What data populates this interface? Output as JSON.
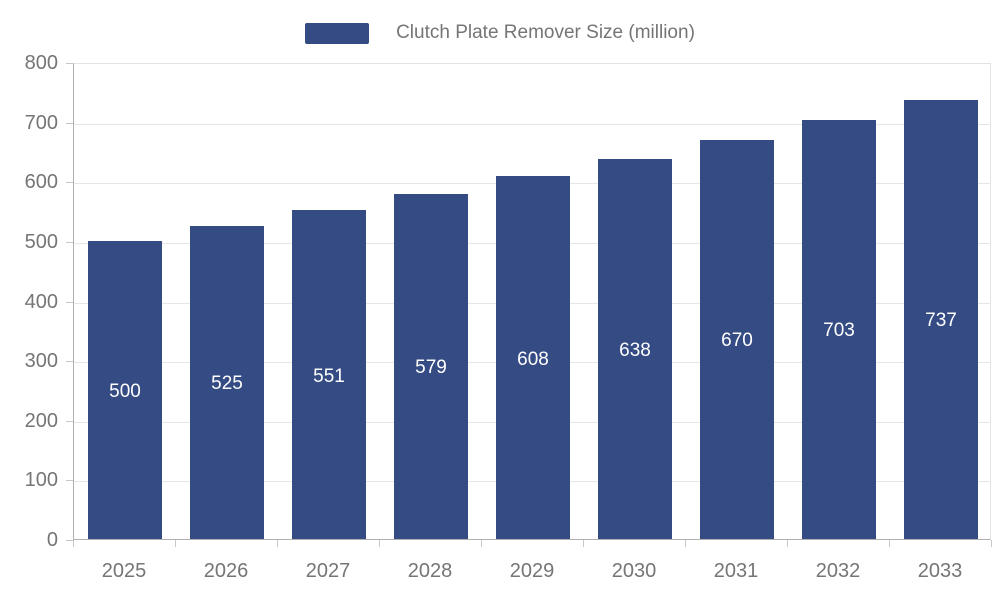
{
  "chart_data": {
    "type": "bar",
    "title": "Clutch Plate Remover Size (million)",
    "legend_label": "Clutch Plate Remover Size (million)",
    "legend_position": "top",
    "categories": [
      "2025",
      "2026",
      "2027",
      "2028",
      "2029",
      "2030",
      "2031",
      "2032",
      "2033"
    ],
    "values": [
      500,
      525,
      551,
      579,
      608,
      638,
      670,
      703,
      737
    ],
    "xlabel": "",
    "ylabel": "",
    "ylim": [
      0,
      800
    ],
    "yticks": [
      0,
      100,
      200,
      300,
      400,
      500,
      600,
      700,
      800
    ],
    "grid": true,
    "bar_color": "#354b84",
    "bar_label_color": "#ffffff",
    "axis_text_color": "#757575",
    "grid_color": "#e6e6e6",
    "axis_line_color": "#b0b0b0"
  }
}
